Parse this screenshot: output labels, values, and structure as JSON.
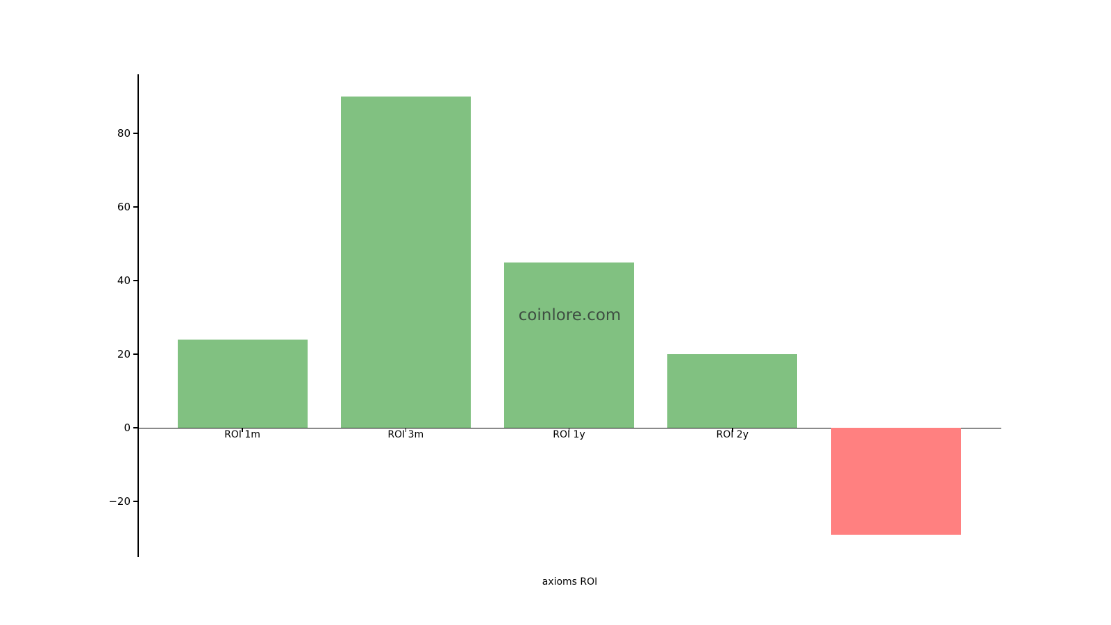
{
  "chart_data": {
    "type": "bar",
    "title": "",
    "xlabel": "axioms ROI",
    "ylabel": "",
    "categories": [
      "ROI 1m",
      "ROI 3m",
      "ROI 1y",
      "ROI 2y",
      ""
    ],
    "values": [
      24,
      90,
      45,
      20,
      -29
    ],
    "yticks": [
      80,
      60,
      40,
      20,
      0,
      -20
    ],
    "ylim": [
      -35,
      96
    ],
    "grid": false,
    "legend": "none",
    "colors": {
      "positive_bar": "#81c181",
      "negative_bar": "#ff8080",
      "axis": "#000000",
      "watermark_text": "#3e4e42"
    },
    "watermark": "coinlore.com"
  }
}
